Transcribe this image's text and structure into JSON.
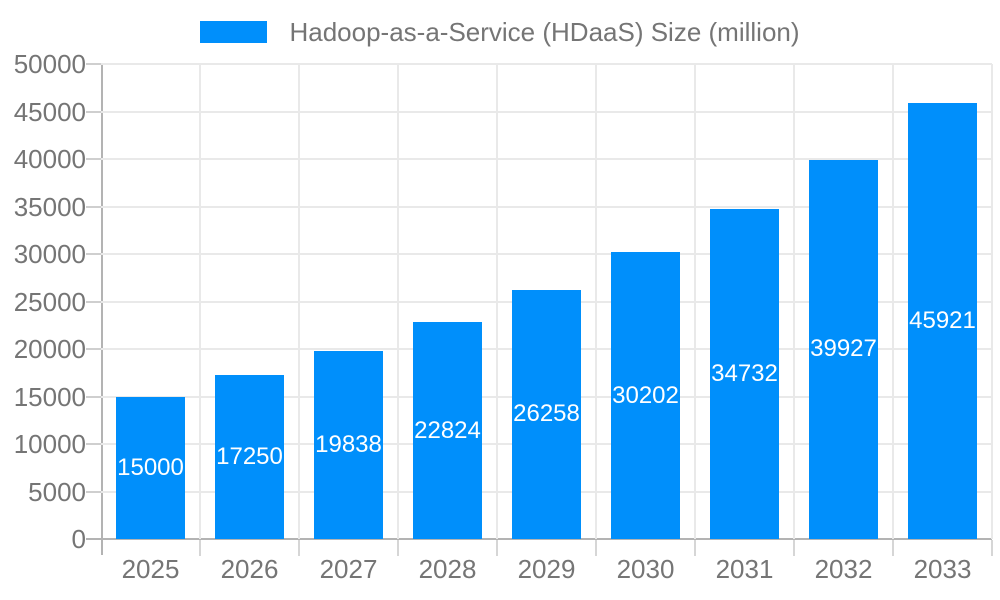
{
  "chart_data": {
    "type": "bar",
    "title": "Hadoop-as-a-Service (HDaaS) Size (million)",
    "legend_label": "Hadoop-as-a-Service (HDaaS) Size (million)",
    "legend_position": "top-center",
    "categories": [
      "2025",
      "2026",
      "2027",
      "2028",
      "2029",
      "2030",
      "2031",
      "2032",
      "2033"
    ],
    "values": [
      15000,
      17250,
      19838,
      22824,
      26258,
      30202,
      34732,
      39927,
      45921
    ],
    "xlabel": "",
    "ylabel": "",
    "ylim": [
      0,
      50000
    ],
    "ytick_step": 5000,
    "ytick_labels": [
      "0",
      "5000",
      "10000",
      "15000",
      "20000",
      "25000",
      "30000",
      "35000",
      "40000",
      "45000",
      "50000"
    ],
    "grid": true,
    "bar_color": "#008FFB",
    "value_label_color": "#ffffff",
    "axis_text_color": "#757575",
    "gridline_color": "#e9e9e9",
    "axis_line_color": "#b3b3b3"
  }
}
